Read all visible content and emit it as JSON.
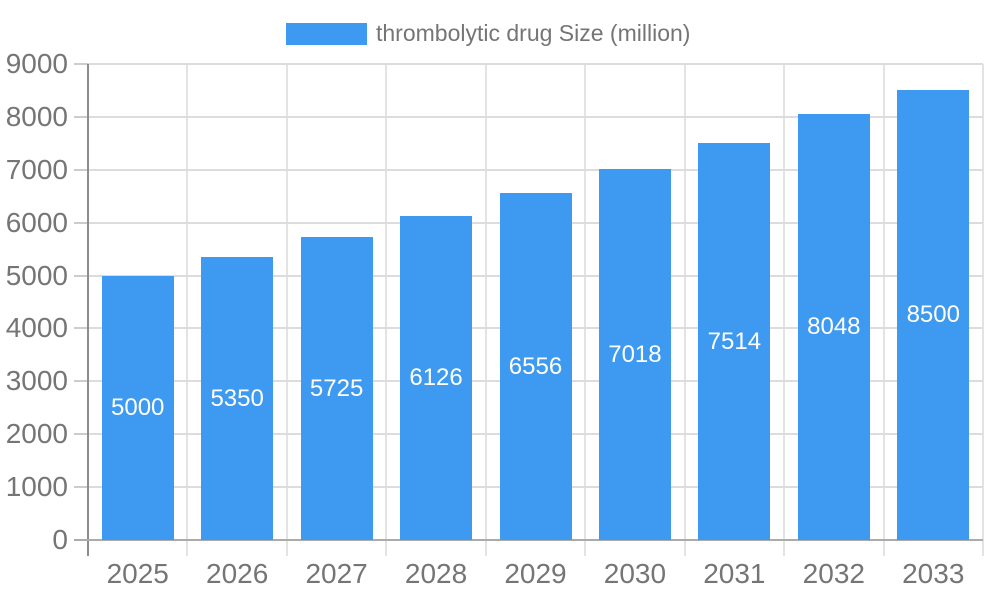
{
  "chart": {
    "background": "#FFFFFF",
    "colors": {
      "bar": "#3D9AF0",
      "bar_value_text": "#FFFFFF",
      "axis_label_text": "#757575",
      "legend_text": "#757575",
      "grid_horizontal": "#DCDCDC",
      "grid_vertical": "#E3E3E3",
      "y_axis_line": "#8C8C8C",
      "x_axis_line": "#ABABAB",
      "tick": "#CCCCCC"
    }
  },
  "chart_data": {
    "type": "bar",
    "title": "thrombolytic drug Size (million)",
    "legend_position": "top",
    "categories": [
      "2025",
      "2026",
      "2027",
      "2028",
      "2029",
      "2030",
      "2031",
      "2032",
      "2033"
    ],
    "series": [
      {
        "name": "thrombolytic drug Size (million)",
        "values": [
          5000,
          5350,
          5725,
          6126,
          6556,
          7018,
          7514,
          8048,
          8500
        ]
      }
    ],
    "bar_value_labels": [
      "5000",
      "5350",
      "5725",
      "6126",
      "6556",
      "7018",
      "7514",
      "8048",
      "8500"
    ],
    "xlabel": "",
    "ylabel": "",
    "ylim": [
      0,
      9000
    ],
    "ytick_interval": 1000,
    "ytick_labels": [
      "0",
      "1000",
      "2000",
      "3000",
      "4000",
      "5000",
      "6000",
      "7000",
      "8000",
      "9000"
    ],
    "grid": true,
    "bar_labels_inside": true
  }
}
